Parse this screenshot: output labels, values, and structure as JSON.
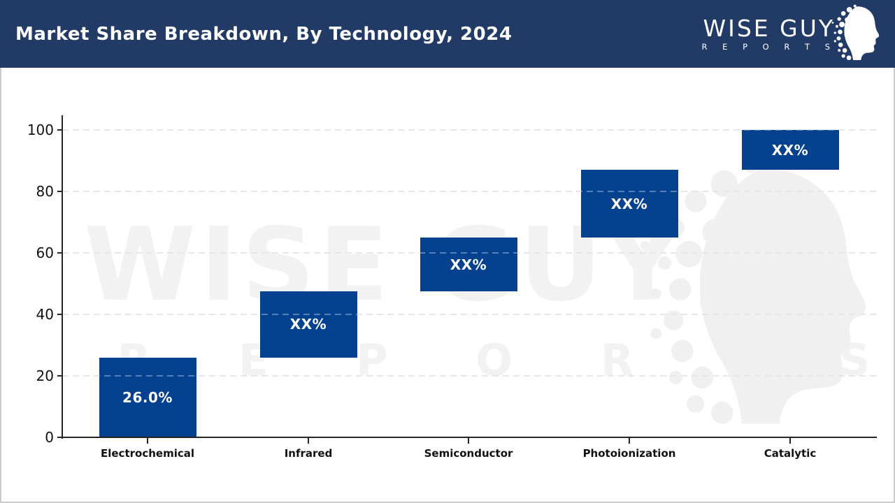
{
  "header": {
    "title": "Market Share Breakdown, By Technology, 2024",
    "logo": {
      "line1": "WISE GUY",
      "line2": "R E P O R T S"
    }
  },
  "watermark": {
    "line1": "WISE GUY",
    "line2": "R E P O R T S"
  },
  "chart_data": {
    "type": "bar",
    "subtype": "floating-waterfall",
    "title": "Market Share Breakdown, By Technology, 2024",
    "categories": [
      "Electrochemical",
      "Infrared",
      "Semiconductor",
      "Photoionization",
      "Catalytic"
    ],
    "series": [
      {
        "name": "Market Share",
        "ranges": [
          [
            0,
            26
          ],
          [
            26,
            47.5
          ],
          [
            47.5,
            65
          ],
          [
            65,
            87
          ],
          [
            87,
            100
          ]
        ],
        "increments": [
          26.0,
          21.5,
          17.5,
          22.0,
          13.0
        ]
      }
    ],
    "bar_labels": [
      "26.0%",
      "XX%",
      "XX%",
      "XX%",
      "XX%"
    ],
    "xlabel": "",
    "ylabel": "",
    "ylim": [
      0,
      100
    ],
    "yticks": [
      0,
      20,
      40,
      60,
      80,
      100
    ],
    "grid": "horizontal-dashed",
    "legend": "none",
    "bar_color": "#04418f",
    "bar_label_color": "#ffffff",
    "axis_color": "#262626",
    "header_color": "#213a66"
  }
}
